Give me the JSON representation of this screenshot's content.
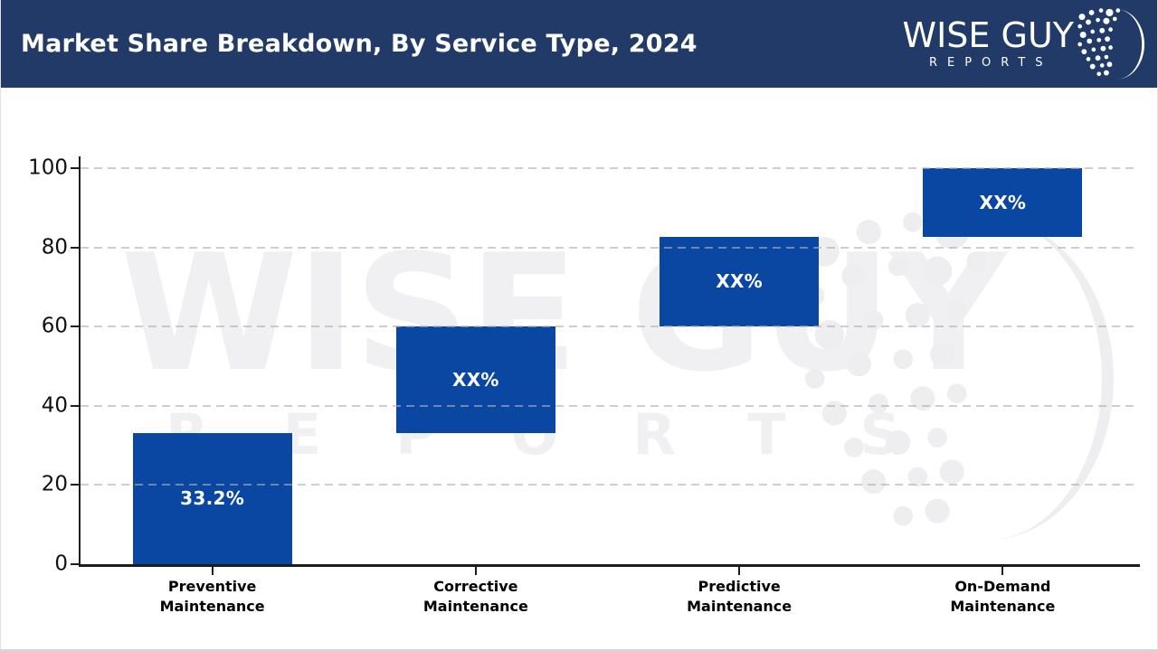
{
  "header": {
    "title": "Market Share Breakdown, By Service Type, 2024",
    "bg_color": "#213a68",
    "logo": {
      "wordmark": "WISE GUY",
      "subtext": "REPORTS"
    }
  },
  "watermark": {
    "wordmark": "WISE GUY",
    "subtext": "REPORTS"
  },
  "colors": {
    "header_bg": "#213a68",
    "bar_blue": "#0a47a2",
    "axis": "#1c1c1c",
    "gridline_gray": "#afafaf",
    "watermark_gray": "#f0f0f3",
    "title_text": "#ffffff",
    "bar_label_text": "#ffffff"
  },
  "chart_data": {
    "type": "bar",
    "subtype": "waterfall",
    "title": "Market Share Breakdown, By Service Type, 2024",
    "categories": [
      "Preventive\nMaintenance",
      "Corrective\nMaintenance",
      "Predictive\nMaintenance",
      "On-Demand\nMaintenance"
    ],
    "segments": [
      {
        "category": "Preventive Maintenance",
        "start": 0,
        "end": 33.2,
        "value_label": "33.2%"
      },
      {
        "category": "Corrective Maintenance",
        "start": 33.2,
        "end": 60,
        "value_label": "XX%"
      },
      {
        "category": "Predictive Maintenance",
        "start": 60,
        "end": 82.7,
        "value_label": "XX%"
      },
      {
        "category": "On-Demand Maintenance",
        "start": 82.7,
        "end": 100,
        "value_label": "XX%"
      }
    ],
    "yticks": [
      0,
      20,
      40,
      60,
      80,
      100
    ],
    "ylim": [
      0,
      103
    ],
    "xlabel": "",
    "ylabel": "",
    "grid": "horizontal dashed, drawn over bars",
    "legend": "none",
    "bar_color": "#0a47a2"
  }
}
